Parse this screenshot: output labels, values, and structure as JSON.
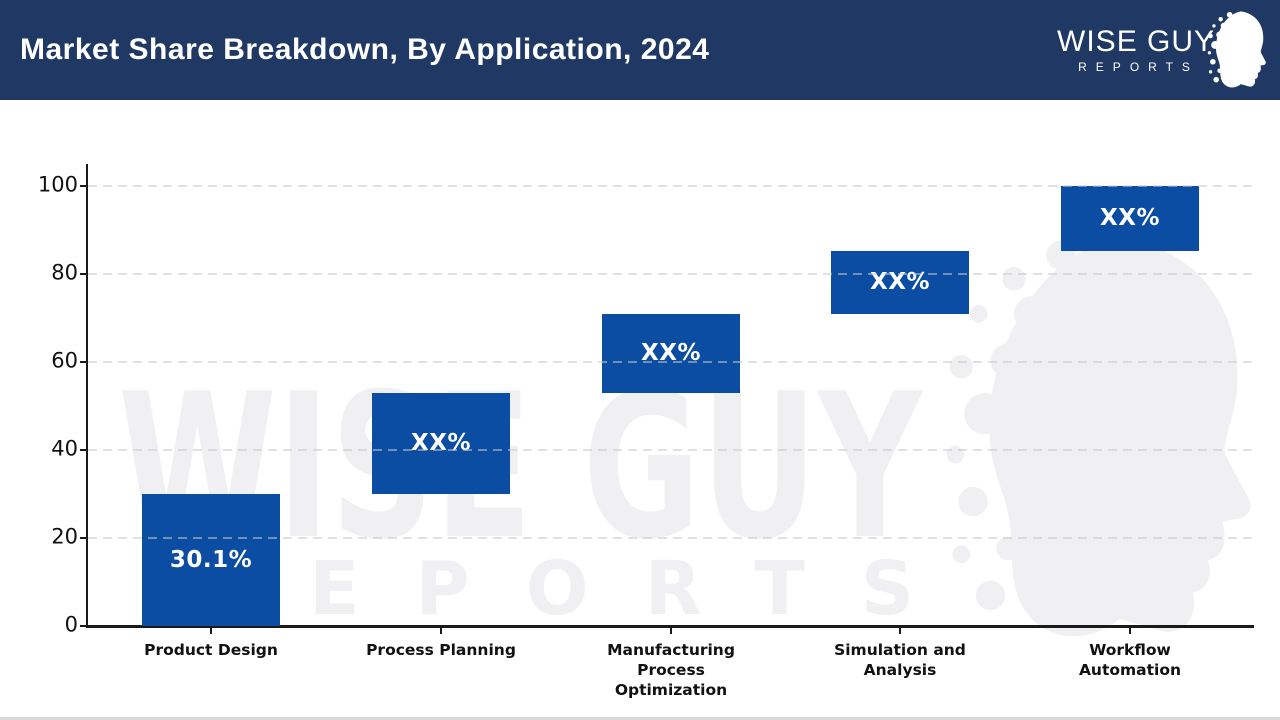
{
  "header": {
    "title": "Market Share Breakdown, By Application, 2024",
    "logo": {
      "name": "WISE GUY",
      "subtitle": "REPORTS"
    }
  },
  "watermark": {
    "line1": "WISE GUY",
    "line2": "REPORTS"
  },
  "chart_data": {
    "type": "bar",
    "variant": "floating-waterfall",
    "title": "Market Share Breakdown, By Application, 2024",
    "categories": [
      "Product Design",
      "Process Planning",
      "Manufacturing Process Optimization",
      "Simulation and Analysis",
      "Workflow Automation"
    ],
    "category_lines": [
      [
        "Product Design"
      ],
      [
        "Process Planning"
      ],
      [
        "Manufacturing",
        "Process",
        "Optimization"
      ],
      [
        "Simulation and",
        "Analysis"
      ],
      [
        "Workflow",
        "Automation"
      ]
    ],
    "segments": [
      {
        "category": "Product Design",
        "start": 0,
        "end": 30.1,
        "label": "30.1%"
      },
      {
        "category": "Process Planning",
        "start": 30.1,
        "end": 53.0,
        "label": "XX%"
      },
      {
        "category": "Manufacturing Process Optimization",
        "start": 53.0,
        "end": 71.0,
        "label": "XX%"
      },
      {
        "category": "Simulation and Analysis",
        "start": 71.0,
        "end": 85.3,
        "label": "XX%"
      },
      {
        "category": "Workflow Automation",
        "start": 85.3,
        "end": 100.0,
        "label": "XX%"
      }
    ],
    "xlabel": "",
    "ylabel": "",
    "ylim": [
      0,
      100
    ],
    "yticks": [
      0,
      20,
      40,
      60,
      80,
      100
    ],
    "grid": "horizontal-dashed",
    "legend": "none",
    "colors": {
      "bar": "#0b4da2",
      "bar_label": "#ffffff",
      "axis": "#1a1a1a",
      "grid": "#dcdcdc",
      "header_bg": "#1f3864",
      "header_text": "#ffffff",
      "watermark": "#f0f0f2"
    }
  }
}
